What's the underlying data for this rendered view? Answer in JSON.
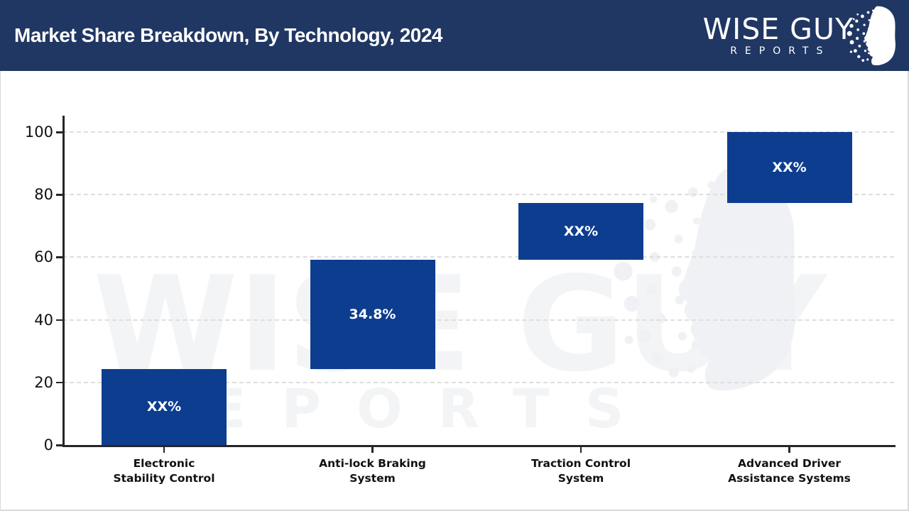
{
  "header": {
    "title": "Market Share Breakdown, By Technology, 2024",
    "logo": {
      "line1": "WISE GUY",
      "line2": "REPORTS"
    }
  },
  "watermark": {
    "line1": "WISE GUY",
    "line2": "REPORTS"
  },
  "chart_data": {
    "type": "bar",
    "subtype": "waterfall",
    "title": "Market Share Breakdown, By Technology, 2024",
    "categories": [
      [
        "Electronic",
        "Stability Control"
      ],
      [
        "Anti-lock Braking",
        "System"
      ],
      [
        "Traction Control",
        "System"
      ],
      [
        "Advanced Driver",
        "Assistance Systems"
      ]
    ],
    "bars": [
      {
        "category": "Electronic Stability Control",
        "start": 0,
        "end": 24.3,
        "value": 24.3,
        "label": "XX%"
      },
      {
        "category": "Anti-lock Braking System",
        "start": 24.3,
        "end": 59.1,
        "value": 34.8,
        "label": "34.8%"
      },
      {
        "category": "Traction Control System",
        "start": 59.1,
        "end": 77.4,
        "value": 18.3,
        "label": "XX%"
      },
      {
        "category": "Advanced Driver Assistance Systems",
        "start": 77.4,
        "end": 100,
        "value": 22.6,
        "label": "XX%"
      }
    ],
    "xlabel": "",
    "ylabel": "",
    "ylim": [
      0,
      100
    ],
    "yticks": [
      0,
      20,
      40,
      60,
      80,
      100
    ],
    "grid": "horizontal-dashed",
    "legend": "none",
    "colors": {
      "bar": "#0d3d8f",
      "bar_label": "#ffffff",
      "grid": "#dedede",
      "axis": "#262626",
      "tick_label": "#111111",
      "header_bg": "#203763",
      "header_text": "#ffffff",
      "watermark": "#f2f3f5"
    }
  }
}
